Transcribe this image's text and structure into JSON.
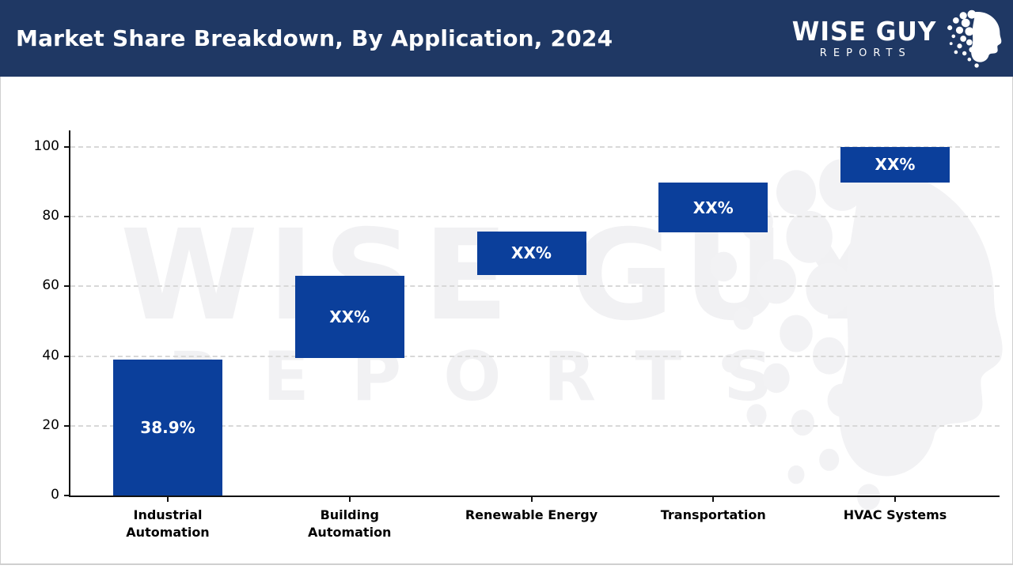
{
  "header": {
    "title": "Market Share Breakdown, By Application, 2024",
    "logo": {
      "line1": "WISE GUY",
      "line2": "REPORTS"
    }
  },
  "watermark": {
    "line1": "WISE GUY",
    "line2": "REPORTS"
  },
  "colors": {
    "header_bg": "#1f3864",
    "bar": "#0b3f9b",
    "grid": "#d8d8d8",
    "axis": "#111111",
    "watermark": "#f1f1f3",
    "panel_border": "#cfcfcf",
    "title_text": "#ffffff",
    "bar_label_text": "#ffffff",
    "tick_text": "#000000"
  },
  "chart_data": {
    "type": "bar",
    "subtype": "waterfall",
    "title": "Market Share Breakdown, By Application, 2024",
    "categories": [
      "Industrial Automation",
      "Building Automation",
      "Renewable Energy",
      "Transportation",
      "HVAC Systems"
    ],
    "segments": [
      {
        "category": "Industrial Automation",
        "lines": [
          "Industrial",
          "Automation"
        ],
        "from": 0,
        "to": 38.9,
        "label": "38.9%"
      },
      {
        "category": "Building Automation",
        "lines": [
          "Building",
          "Automation"
        ],
        "from": 39.4,
        "to": 63.1,
        "label": "XX%"
      },
      {
        "category": "Renewable Energy",
        "lines": [
          "Renewable Energy"
        ],
        "from": 63.3,
        "to": 75.8,
        "label": "XX%"
      },
      {
        "category": "Transportation",
        "lines": [
          "Transportation"
        ],
        "from": 75.4,
        "to": 89.9,
        "label": "XX%"
      },
      {
        "category": "HVAC Systems",
        "lines": [
          "HVAC Systems"
        ],
        "from": 89.7,
        "to": 100.1,
        "label": "XX%"
      }
    ],
    "yticks": [
      0,
      20,
      40,
      60,
      80,
      100
    ],
    "ylim": [
      0,
      105
    ],
    "xlabel": "",
    "ylabel": "",
    "grid": "horizontal-dashed",
    "legend": "none",
    "bar_color": "#0b3f9b"
  }
}
